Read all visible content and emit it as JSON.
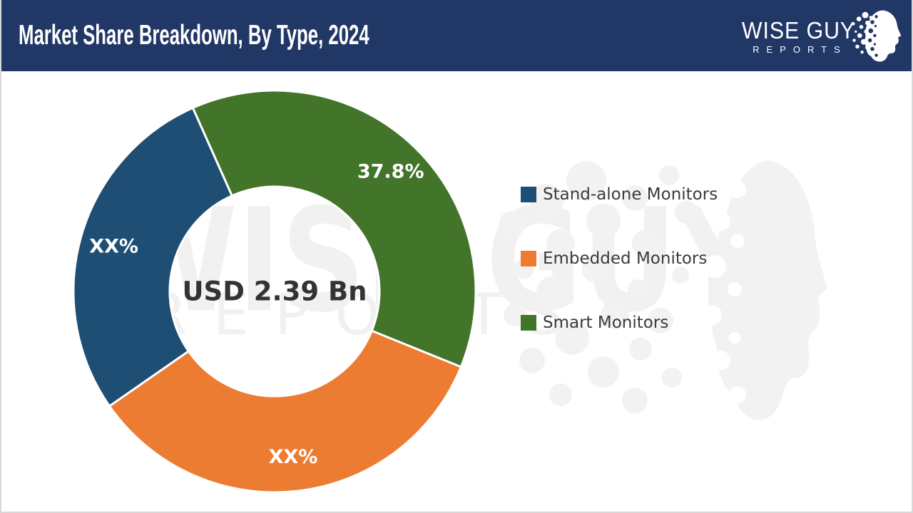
{
  "header": {
    "title": "Market Share Breakdown, By Type, 2024",
    "brand": {
      "name": "WISE GUY",
      "sub": "REPORTS"
    }
  },
  "watermark": {
    "line1": "WISE GUY",
    "line2": "REPORTS"
  },
  "chart_data": {
    "type": "pie",
    "subtype": "donut",
    "title": "Market Share Breakdown, By Type, 2024",
    "center_label": "USD 2.39 Bn",
    "start_angle_deg": -24,
    "legend_position": "right",
    "categories": [
      "Smart Monitors",
      "Embedded Monitors",
      "Stand-alone Monitors"
    ],
    "labels_shown": [
      "37.8%",
      "XX%",
      "XX%"
    ],
    "slices": [
      {
        "category": "Smart Monitors",
        "display_label": "37.8%",
        "value_pct": 37.8,
        "estimated": false,
        "color": "#427429",
        "id": "smart-monitors"
      },
      {
        "category": "Embedded Monitors",
        "display_label": "XX%",
        "value_pct": 34.2,
        "estimated": true,
        "color": "#ed7c33",
        "id": "embedded-monitors"
      },
      {
        "category": "Stand-alone Monitors",
        "display_label": "XX%",
        "value_pct": 28.0,
        "estimated": true,
        "color": "#1f4e74",
        "id": "stand-alone-monitors"
      }
    ],
    "legend": {
      "items": [
        {
          "label": "Stand-alone Monitors",
          "color": "#1f4e74"
        },
        {
          "label": "Embedded Monitors",
          "color": "#ed7c33"
        },
        {
          "label": "Smart Monitors",
          "color": "#427429"
        }
      ]
    }
  },
  "colors": {
    "header_bg": "#213765",
    "title_text": "#ffffff",
    "center_text": "#333333",
    "legend_text": "#3a3a3a",
    "watermark": "#f1f1f1",
    "page_border": "#d9d9d9"
  }
}
